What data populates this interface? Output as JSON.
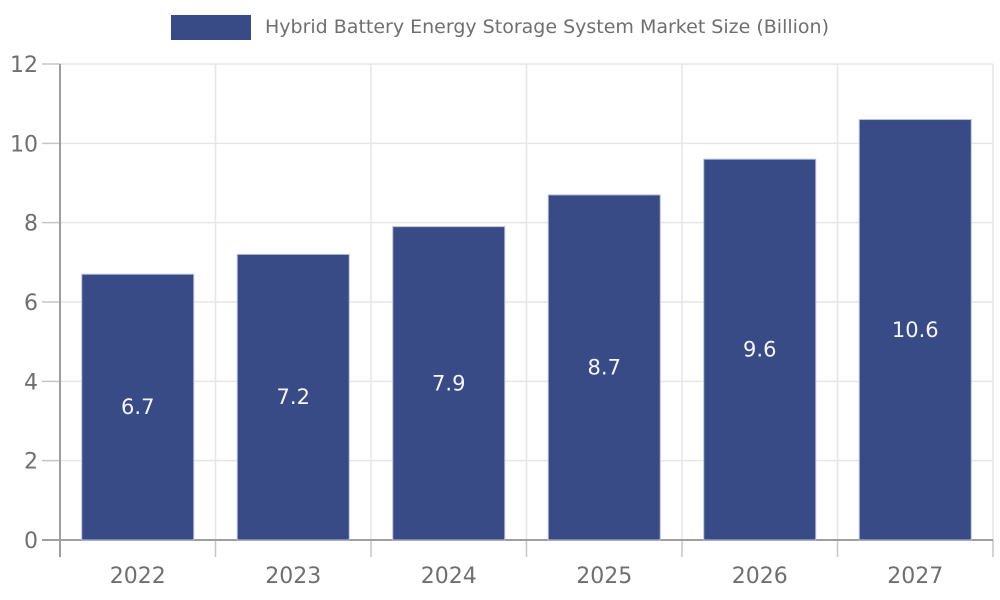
{
  "chart_data": {
    "type": "bar",
    "title": "Hybrid Battery Energy Storage System Market Size (Billion)",
    "categories": [
      "2022",
      "2023",
      "2024",
      "2025",
      "2026",
      "2027"
    ],
    "values": [
      6.7,
      7.2,
      7.9,
      8.7,
      9.6,
      10.6
    ],
    "bar_value_labels": [
      "6.7",
      "7.2",
      "7.9",
      "8.7",
      "9.6",
      "10.6"
    ],
    "xlabel": "",
    "ylabel": "",
    "ylim": [
      0,
      12
    ],
    "yticks": [
      0,
      2,
      4,
      6,
      8,
      10,
      12
    ],
    "grid": true,
    "legend_position": "top-center"
  },
  "colors": {
    "bar_fill": "#394b86",
    "bar_edge": "#b7c0da",
    "grid_line": "#e6e6e6",
    "axis_line": "#9e9e9e",
    "tick_mark": "#c6c6c6",
    "tick_label": "#6f6f6f",
    "legend_text": "#6f6f6f",
    "bar_value_text": "#f5f6fa",
    "background": "#ffffff"
  }
}
